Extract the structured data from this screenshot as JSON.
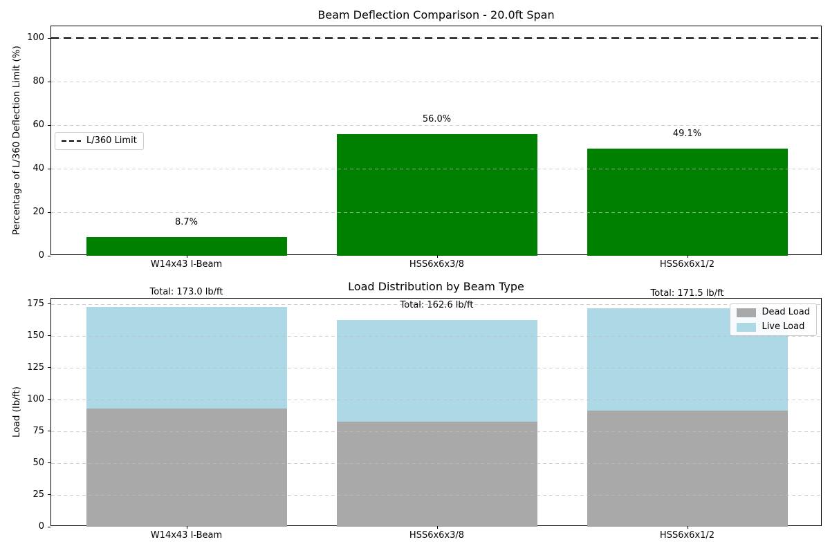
{
  "figure": {
    "background": "#ffffff",
    "text_color": "#000000",
    "grid_color": "#d3d3d3",
    "spine_color": "#000000"
  },
  "chart_data": [
    {
      "type": "bar",
      "title": "Beam Deflection Comparison - 20.0ft Span",
      "ylabel": "Percentage of L/360 Deflection Limit (%)",
      "xlabel": "",
      "categories": [
        "W14x43 I-Beam",
        "HSS6x6x3/8",
        "HSS6x6x1/2"
      ],
      "values": [
        8.7,
        56.0,
        49.1
      ],
      "bar_labels": [
        "8.7%",
        "56.0%",
        "49.1%"
      ],
      "bar_color": "#008000",
      "yticks": [
        0,
        20,
        40,
        60,
        80,
        100
      ],
      "ylim": [
        0,
        105.5
      ],
      "grid": "y-axis dashed",
      "reference_line": {
        "y": 100,
        "color": "#000000",
        "style": "dashed"
      },
      "legend": {
        "position": "center-left",
        "entries": [
          {
            "label": "L/360 Limit",
            "marker": "dashed-line",
            "color": "#000000"
          }
        ]
      }
    },
    {
      "type": "stacked-bar",
      "title": "Load Distribution by Beam Type",
      "ylabel": "Load (lb/ft)",
      "xlabel": "",
      "categories": [
        "W14x43 I-Beam",
        "HSS6x6x3/8",
        "HSS6x6x1/2"
      ],
      "series": [
        {
          "name": "Dead Load",
          "color": "#a9a9a9",
          "values": [
            93.0,
            82.6,
            91.5
          ]
        },
        {
          "name": "Live Load",
          "color": "#add8e6",
          "values": [
            80.0,
            80.0,
            80.0
          ]
        }
      ],
      "totals": [
        173.0,
        162.6,
        171.5
      ],
      "total_labels": [
        "Total: 173.0 lb/ft",
        "Total: 162.6 lb/ft",
        "Total: 171.5 lb/ft"
      ],
      "yticks": [
        0,
        25,
        50,
        75,
        100,
        125,
        150,
        175
      ],
      "ylim": [
        0,
        179.3
      ],
      "grid": "y-axis dashed",
      "legend": {
        "position": "top-right",
        "entries": [
          {
            "label": "Dead Load",
            "marker": "patch",
            "color": "#a9a9a9"
          },
          {
            "label": "Live Load",
            "marker": "patch",
            "color": "#add8e6"
          }
        ]
      }
    }
  ]
}
